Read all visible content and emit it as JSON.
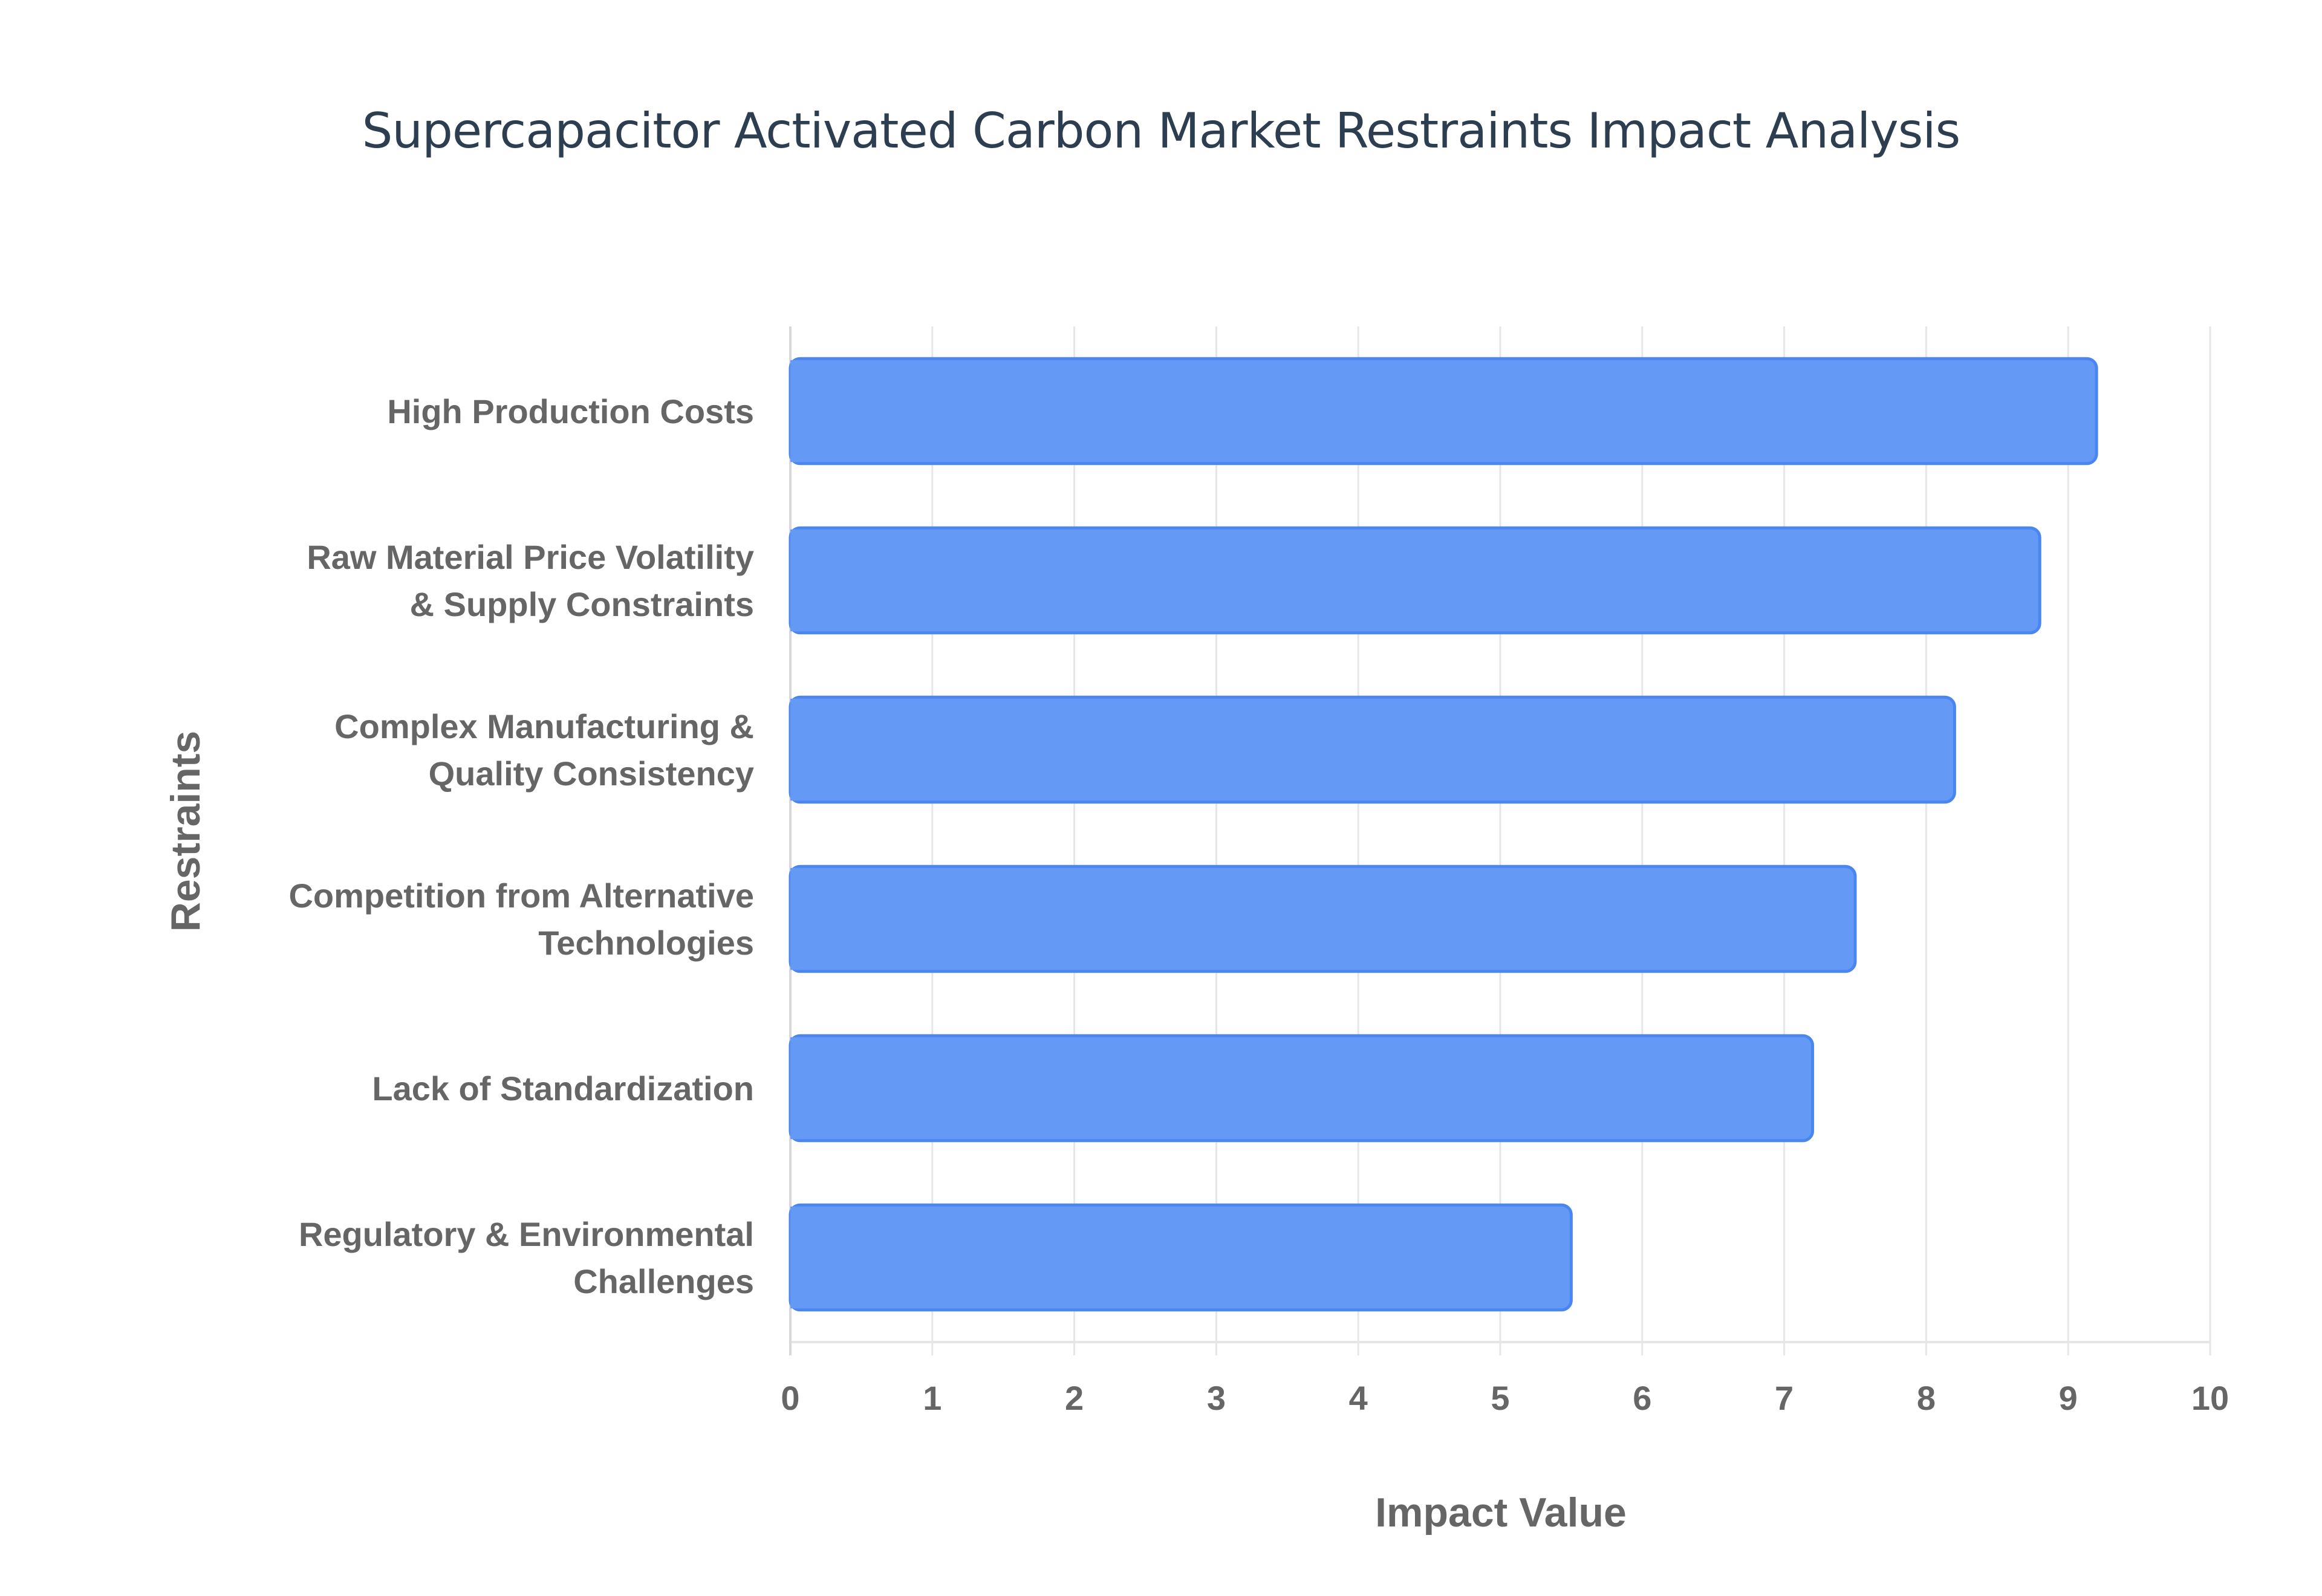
{
  "chart_data": {
    "type": "bar",
    "orientation": "horizontal",
    "title": "Supercapacitor Activated Carbon Market Restraints Impact Analysis",
    "xlabel": "Impact Value",
    "ylabel": "Restraints",
    "xlim": [
      0,
      10
    ],
    "x_ticks": [
      "0",
      "1",
      "2",
      "3",
      "4",
      "5",
      "6",
      "7",
      "8",
      "9",
      "10"
    ],
    "grid": true,
    "categories": [
      [
        "High Production Costs"
      ],
      [
        "Raw Material Price Volatility",
        "& Supply Constraints"
      ],
      [
        "Complex Manufacturing &",
        "Quality Consistency"
      ],
      [
        "Competition from Alternative",
        "Technologies"
      ],
      [
        "Lack of Standardization"
      ],
      [
        "Regulatory & Environmental",
        "Challenges"
      ]
    ],
    "values": [
      9.2,
      8.8,
      8.2,
      7.5,
      7.2,
      5.5
    ],
    "colors": {
      "bar_fill": "#6499f5",
      "bar_stroke": "#4a86ee",
      "grid": "#e6e6e6",
      "text": "#666666",
      "title": "#2c3e50"
    }
  }
}
